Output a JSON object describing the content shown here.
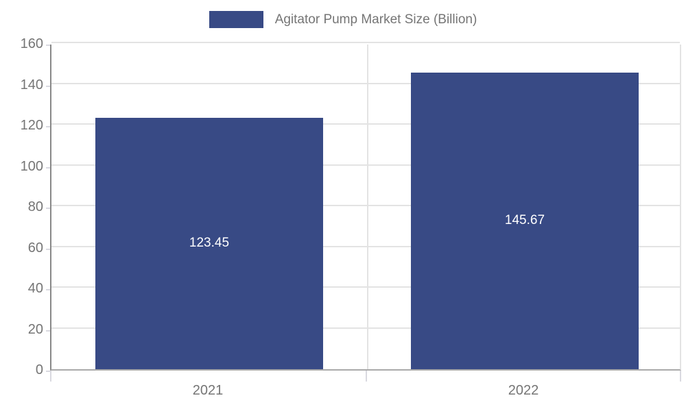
{
  "chart_data": {
    "type": "bar",
    "title": "",
    "legend": "Agitator Pump Market Size (Billion)",
    "legend_position": "top-center",
    "categories": [
      "2021",
      "2022"
    ],
    "series": [
      {
        "name": "Agitator Pump Market Size (Billion)",
        "values": [
          123.45,
          145.67
        ],
        "value_labels": [
          "123.45",
          "145.67"
        ]
      }
    ],
    "xlabel": "",
    "ylabel": "",
    "ylim": [
      0,
      160
    ],
    "ytick_step": 20,
    "ytick_labels": [
      "0",
      "20",
      "40",
      "60",
      "80",
      "100",
      "120",
      "140",
      "160"
    ],
    "grid": true,
    "colors": {
      "bar": "#384a85",
      "bar_value_text": "#ffffff",
      "tick_text": "#757575",
      "legend_text": "#757575",
      "gridline": "#e3e3e3",
      "axis_left": "#888888",
      "axis_bottom": "#a9a9a9",
      "background": "#ffffff"
    }
  }
}
